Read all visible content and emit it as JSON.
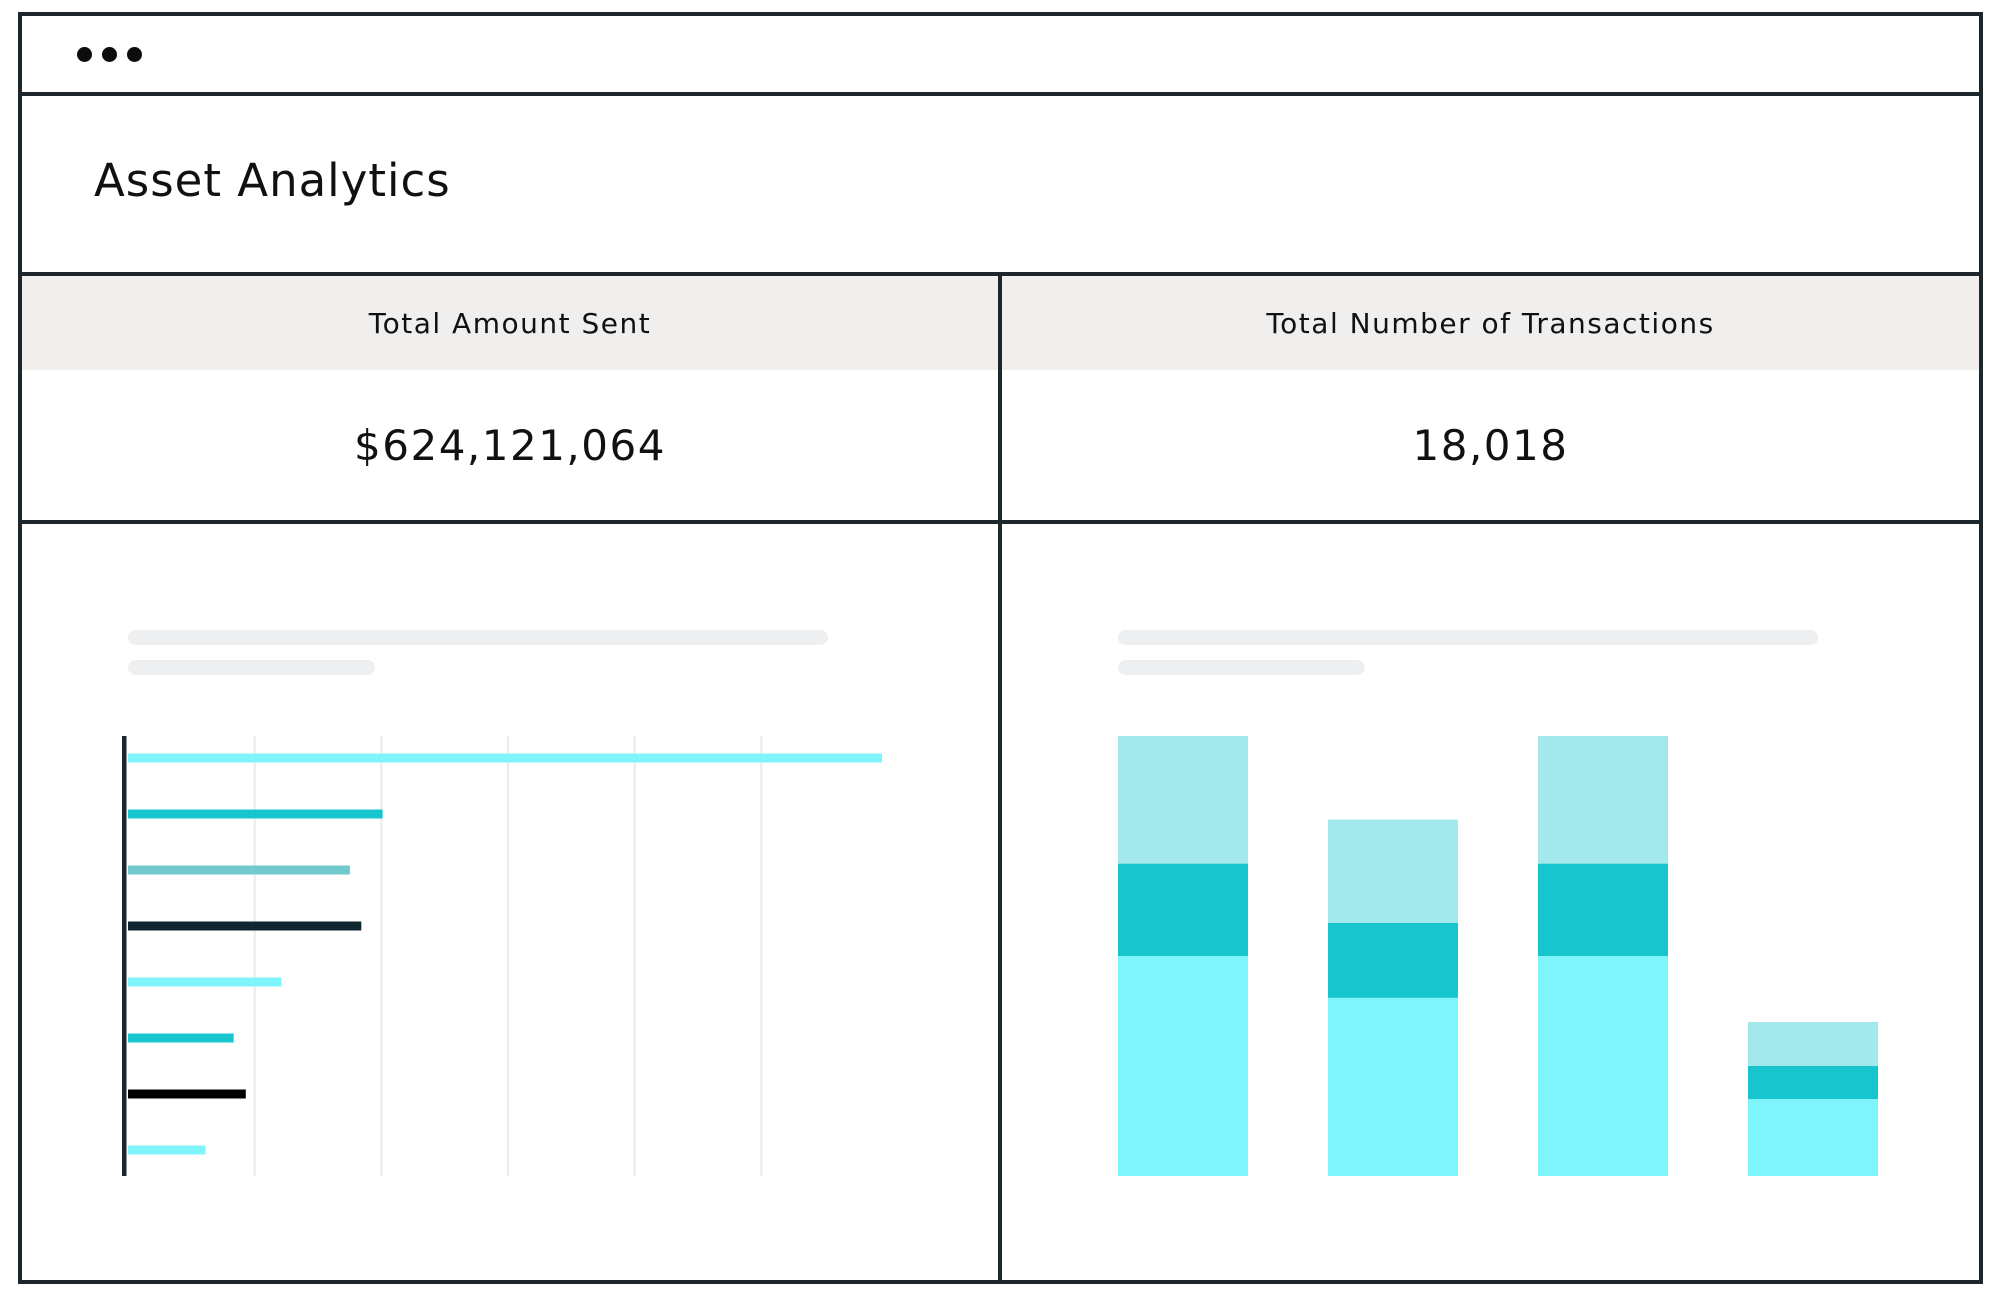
{
  "window": {
    "controls_icon": "ellipsis-icon"
  },
  "header": {
    "title": "Asset Analytics"
  },
  "metrics": [
    {
      "label": "Total Amount Sent",
      "value": "$624,121,064"
    },
    {
      "label": "Total Number of Transactions",
      "value": "18,018"
    }
  ],
  "colors": {
    "border": "#1c262b",
    "metric_header_bg": "#f0efed",
    "placeholder": "#edeff1",
    "grid": "#e9ebec",
    "cyan_light": "#7ef5fb",
    "teal": "#17c5cf",
    "pale_teal": "#a3e8ea",
    "muted_teal": "#70c9cd",
    "dark": "#0f2530",
    "black": "#000000"
  },
  "chart_data": [
    {
      "type": "bar",
      "orientation": "horizontal",
      "values": [
        100,
        33.5,
        29.2,
        30.7,
        20.2,
        13.9,
        15.5,
        10.2
      ],
      "bar_colors": [
        "#7ef5fb",
        "#17c5cf",
        "#70c9cd",
        "#0f2530",
        "#7ef5fb",
        "#17c5cf",
        "#000000",
        "#7ef5fb"
      ],
      "xlim": [
        0,
        100
      ],
      "grid": true,
      "title": "",
      "xlabel": "",
      "ylabel": ""
    },
    {
      "type": "bar",
      "stacked": true,
      "categories": [
        "",
        "",
        "",
        ""
      ],
      "series": [
        {
          "color": "#7ef5fb",
          "values": [
            50,
            40.5,
            50,
            17.5
          ]
        },
        {
          "color": "#17c5cf",
          "values": [
            21,
            17,
            21,
            7.5
          ]
        },
        {
          "color": "#a3e8ea",
          "values": [
            29,
            23.5,
            29,
            10
          ]
        }
      ],
      "ylim": [
        0,
        100
      ],
      "grid": false,
      "title": "",
      "xlabel": "",
      "ylabel": ""
    }
  ]
}
